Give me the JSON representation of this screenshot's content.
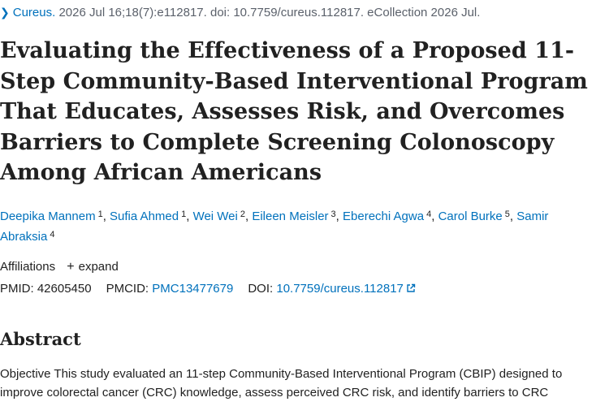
{
  "citation": {
    "journal": "Cureus.",
    "details": "2026 Jul 16;18(7):e112817. doi: 10.7759/cureus.112817. eCollection 2026 Jul."
  },
  "title": "Evaluating the Effectiveness of a Proposed 11-Step Community-Based Interventional Program That Educates, Assesses Risk, and Overcomes Barriers to Complete Screening Colonoscopy Among African Americans",
  "authors": [
    {
      "name": "Deepika Mannem",
      "aff": "1"
    },
    {
      "name": "Sufia Ahmed",
      "aff": "1"
    },
    {
      "name": "Wei Wei",
      "aff": "2"
    },
    {
      "name": "Eileen Meisler",
      "aff": "3"
    },
    {
      "name": "Eberechi Agwa",
      "aff": "4"
    },
    {
      "name": "Carol Burke",
      "aff": "5"
    },
    {
      "name": "Samir Abraksia",
      "aff": "4"
    }
  ],
  "affiliations": {
    "label": "Affiliations",
    "expand_label": "expand"
  },
  "ids": {
    "pmid_label": "PMID:",
    "pmid": "42605450",
    "pmcid_label": "PMCID:",
    "pmcid": "PMC13477679",
    "doi_label": "DOI:",
    "doi": "10.7759/cureus.112817"
  },
  "abstract": {
    "heading": "Abstract",
    "text": "Objective This study evaluated an 11-step Community-Based Interventional Program (CBIP) designed to improve colorectal cancer (CRC) knowledge, assess perceived CRC risk, and identify barriers to CRC"
  },
  "icons": {
    "citation_chevron": "chevron-right-icon",
    "expand": "plus-icon",
    "external_link": "external-link-icon"
  },
  "colors": {
    "link": "#0071bc",
    "text": "#212121",
    "muted": "#5b616b"
  }
}
